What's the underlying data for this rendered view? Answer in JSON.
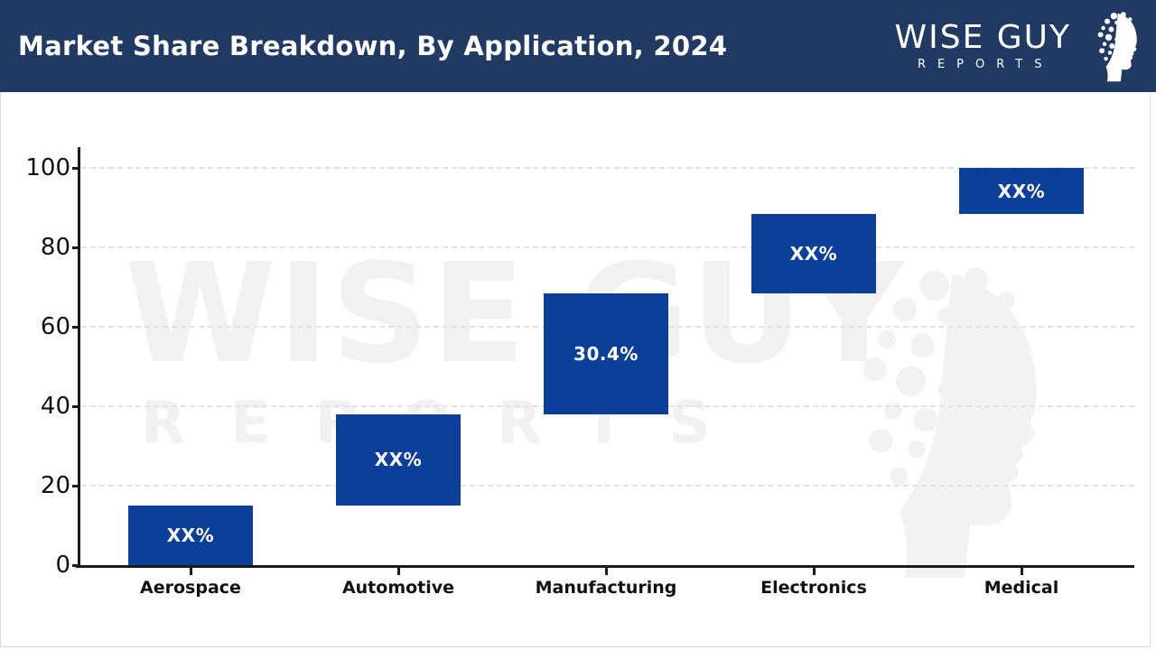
{
  "header": {
    "title": "Market Share Breakdown, By Application, 2024",
    "bg_color": "#203a64",
    "logo": {
      "line1": "WISE GUY",
      "line2": "REPORTS"
    }
  },
  "watermark": {
    "line1": "WISE GUY",
    "line2": "REPORTS"
  },
  "chart_data": {
    "type": "bar",
    "subtype": "waterfall-floating-segments",
    "title": "Market Share Breakdown, By Application, 2024",
    "categories": [
      "Aerospace",
      "Automotive",
      "Manufacturing",
      "Electronics",
      "Medical"
    ],
    "series": [
      {
        "name": "Market Share %",
        "values": [
          15,
          23,
          30.4,
          20,
          11.6
        ]
      }
    ],
    "bar_labels": [
      "XX%",
      "XX%",
      "30.4%",
      "XX%",
      "XX%"
    ],
    "bar_color": "#0b3f99",
    "xlabel": "",
    "ylabel": "",
    "yticks": [
      0,
      20,
      40,
      60,
      80,
      100
    ],
    "ylim": [
      0,
      105
    ],
    "grid": "horizontal-dashed",
    "legend": "none"
  }
}
